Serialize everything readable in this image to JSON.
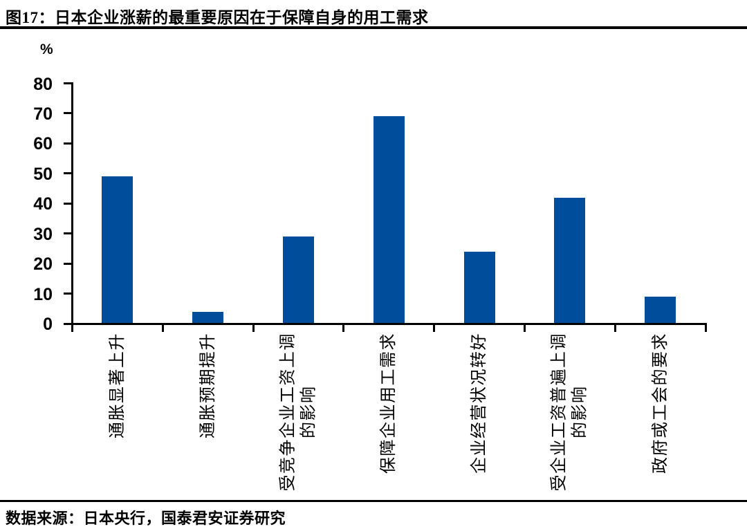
{
  "figure": {
    "title": "图17：日本企业涨薪的最重要原因在于保障自身的用工需求",
    "source": "数据来源：日本央行，国泰君安证券研究"
  },
  "chart_data": {
    "type": "bar",
    "title": "日本企业涨薪的最重要原因在于保障自身的用工需求",
    "unit_label": "%",
    "categories": [
      "通胀显著上升",
      "通胀预期提升",
      "受竞争企业工资上调\n的影响",
      "保障企业用工需求",
      "企业经营状况转好",
      "受企业工资普遍上调\n的影响",
      "政府或工会的要求"
    ],
    "values": [
      49,
      4,
      29,
      69,
      24,
      42,
      9
    ],
    "xlabel": "",
    "ylabel": "%",
    "ylim": [
      0,
      80
    ],
    "yticks": [
      0,
      10,
      20,
      30,
      40,
      50,
      60,
      70,
      80
    ],
    "grid": false,
    "legend_position": "none",
    "bar_color": "#004E9B",
    "axis_color": "#000000"
  }
}
